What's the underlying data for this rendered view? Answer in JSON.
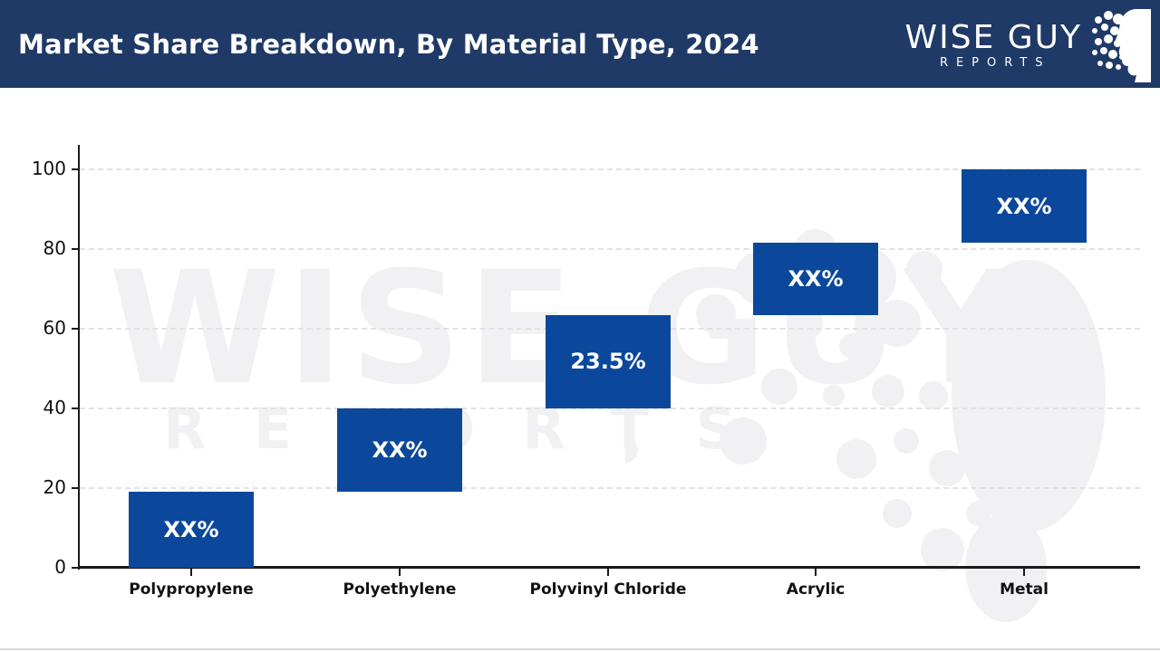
{
  "header": {
    "title": "Market Share Breakdown, By Material Type, 2024",
    "logo": {
      "line1": "WISE GUY",
      "line2": "REPORTS"
    }
  },
  "watermark": {
    "line1": "WISE GUY",
    "line2": "REPORTS"
  },
  "chart_data": {
    "type": "bar",
    "subtype": "floating-waterfall",
    "title": "Market Share Breakdown, By Material Type, 2024",
    "categories": [
      "Polypropylene",
      "Polyethylene",
      "Polyvinyl Chloride",
      "Acrylic",
      "Metal"
    ],
    "bars": [
      {
        "category": "Polypropylene",
        "start": 0,
        "end": 19,
        "label": "XX%"
      },
      {
        "category": "Polyethylene",
        "start": 19,
        "end": 40,
        "label": "XX%"
      },
      {
        "category": "Polyvinyl Chloride",
        "start": 40,
        "end": 63.5,
        "label": "23.5%"
      },
      {
        "category": "Acrylic",
        "start": 63.5,
        "end": 81.5,
        "label": "XX%"
      },
      {
        "category": "Metal",
        "start": 81.5,
        "end": 100,
        "label": "XX%"
      }
    ],
    "yticks": [
      0,
      20,
      40,
      60,
      80,
      100
    ],
    "ylim": [
      0,
      106
    ],
    "xlabel": "",
    "ylabel": "",
    "grid": "horizontal-dashed",
    "legend": null
  },
  "colors": {
    "header_bg": "#203a67",
    "bar_fill": "#0b489c",
    "bar_label": "#ffffff",
    "grid_line": "#e2e2e2",
    "axis_line": "#1a1a1a",
    "watermark": "#f1f1f4",
    "bottom_divider": "#d9d9d9"
  }
}
